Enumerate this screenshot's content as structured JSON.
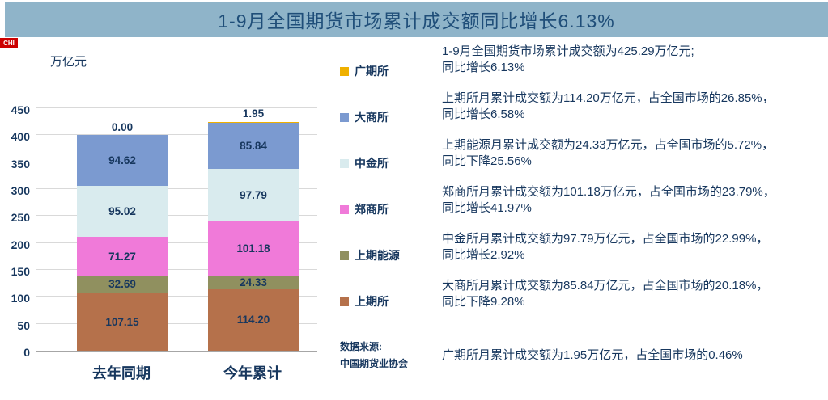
{
  "title": "1-9月全国期货市场累计成交额同比增长6.13%",
  "logo_text": "CHI",
  "colors": {
    "title_bar_bg": "#8fb4c9",
    "title_text": "#1f4e79",
    "body_text": "#17375e",
    "gridline": "#d9d9d9",
    "logo_bg": "#cc0000"
  },
  "chart_data": {
    "type": "bar",
    "stacked": true,
    "ylabel": "万亿元",
    "xlabel": "",
    "ylim": [
      0,
      450
    ],
    "ytick_step": 50,
    "grid": true,
    "legend_position": "right",
    "categories": [
      "去年同期",
      "今年累计"
    ],
    "series": [
      {
        "name": "上期所",
        "color": "#b5714b",
        "values": [
          107.15,
          114.2
        ]
      },
      {
        "name": "上期能源",
        "color": "#90905f",
        "values": [
          32.69,
          24.33
        ]
      },
      {
        "name": "郑商所",
        "color": "#f07ad9",
        "values": [
          71.27,
          101.18
        ]
      },
      {
        "name": "中金所",
        "color": "#d9ebee",
        "values": [
          95.02,
          97.79
        ]
      },
      {
        "name": "大商所",
        "color": "#7b9ad0",
        "values": [
          94.62,
          85.84
        ]
      },
      {
        "name": "广期所",
        "color": "#efb000",
        "values": [
          0.0,
          1.95
        ]
      }
    ]
  },
  "source": {
    "label": "数据来源:",
    "name": "中国期货业协会"
  },
  "notes": [
    [
      "1-9月全国期货市场累计成交额为425.29万亿元;",
      "同比增长6.13%"
    ],
    [
      "上期所月累计成交额为114.20万亿元，占全国市场的26.85%，",
      "同比增长6.58%"
    ],
    [
      "上期能源月累计成交额为24.33万亿元，占全国市场的5.72%，",
      "同比下降25.56%"
    ],
    [
      "郑商所月累计成交额为101.18万亿元，占全国市场的23.79%，",
      "同比增长41.97%"
    ],
    [
      "中金所月累计成交额为97.79万亿元，占全国市场的22.99%，",
      "同比增长2.92%"
    ],
    [
      "大商所月累计成交额为85.84万亿元，占全国市场的20.18%，",
      "同比下降9.28%"
    ],
    [
      "广期所月累计成交额为1.95万亿元，占全国市场的0.46%"
    ]
  ]
}
